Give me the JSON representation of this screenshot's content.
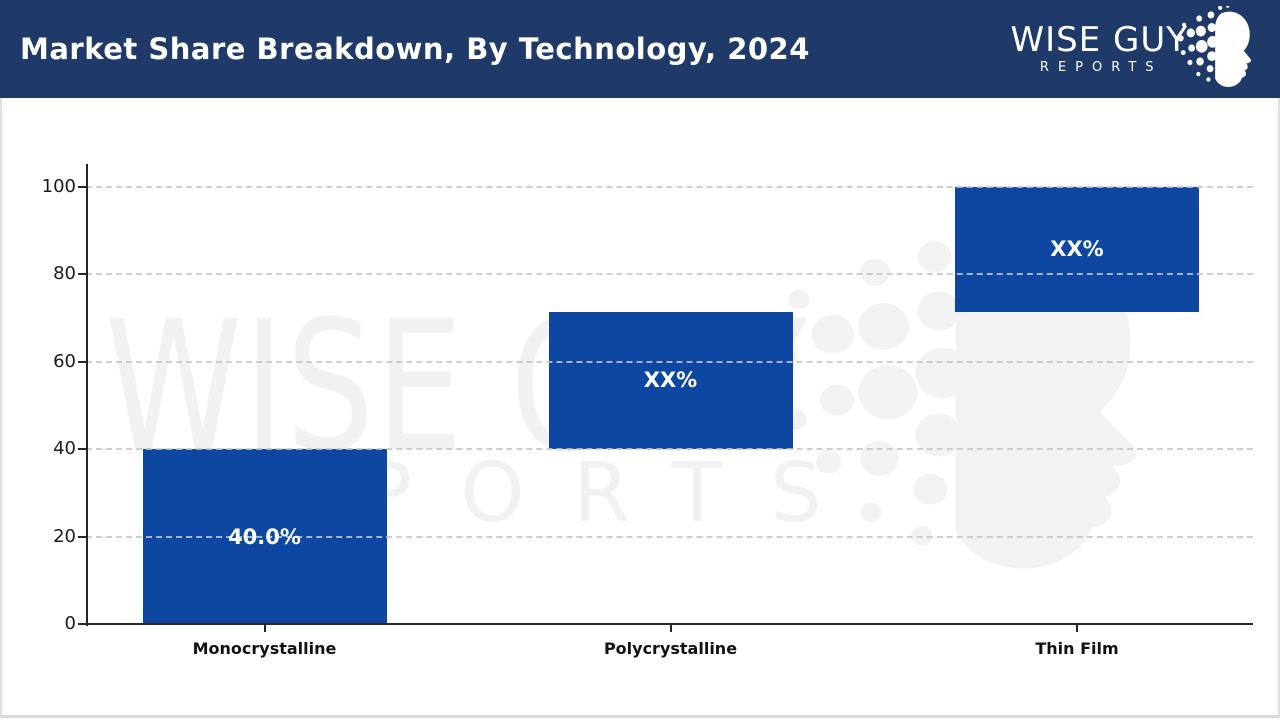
{
  "header": {
    "title": "Market Share Breakdown, By Technology, 2024",
    "background_color": "#1f3a68",
    "title_color": "#ffffff",
    "logo": {
      "name": "Wise Guy Reports",
      "line1": "WISE GUY",
      "line2": "REPORTS",
      "head_icon": "dotted-face-profile"
    }
  },
  "watermark": {
    "line1": "WISE GUY",
    "line2": "REPORTS",
    "head_icon": "dotted-face-profile"
  },
  "chart_data": {
    "type": "bar",
    "variant": "floating cumulative breakdown (waterfall-style market share)",
    "title": "Market Share Breakdown, By Technology, 2024",
    "categories": [
      "Monocrystalline",
      "Polycrystalline",
      "Thin Film"
    ],
    "bars": [
      {
        "category": "Monocrystalline",
        "start": 0,
        "end": 40,
        "share_pct": 40.0,
        "value_label": "40.0%"
      },
      {
        "category": "Polycrystalline",
        "start": 40,
        "end": 71.5,
        "share_pct": 31.5,
        "value_label": "XX%"
      },
      {
        "category": "Thin Film",
        "start": 71.5,
        "end": 100,
        "share_pct": 28.5,
        "value_label": "XX%"
      }
    ],
    "xlabel": "",
    "ylabel": "",
    "y_ticks": [
      0,
      20,
      40,
      60,
      80,
      100
    ],
    "ylim": [
      0,
      105
    ],
    "grid": "horizontal dashed gridlines drawn over bars",
    "legend": "none",
    "bar_color": "#0d47a1",
    "bar_label_color": "#ffffff",
    "axis_color": "#262626",
    "gridline_color": "#c5c5c5",
    "tick_label_color": "#1a1a1a"
  }
}
